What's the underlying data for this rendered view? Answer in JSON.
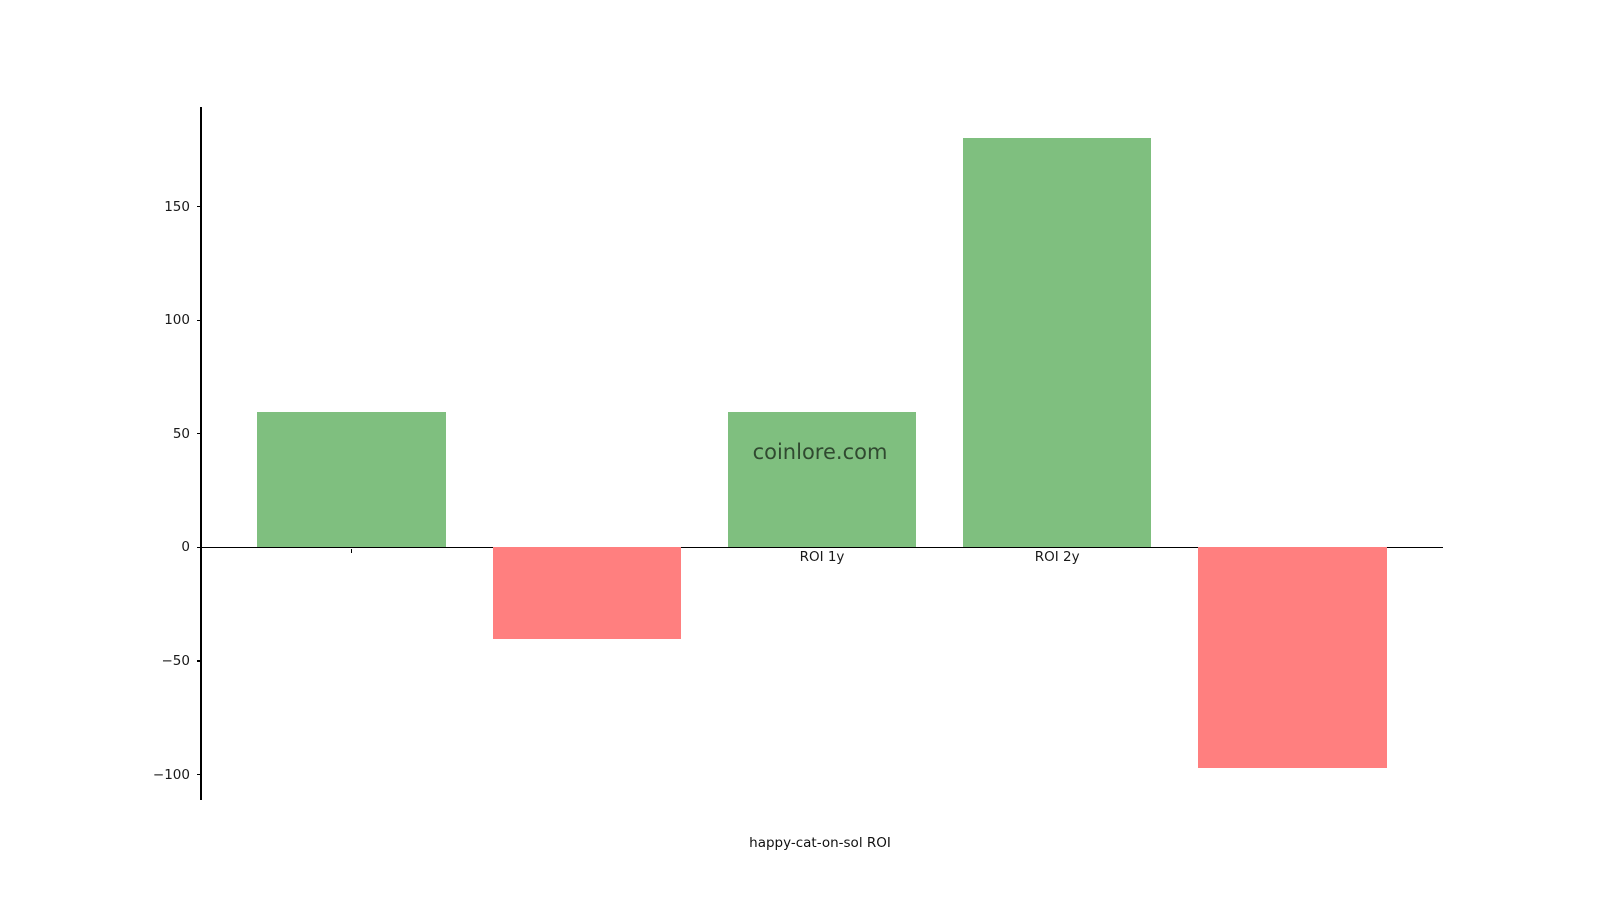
{
  "page": {
    "background": "#ffffff"
  },
  "watermark": {
    "text": "coinlore.com"
  },
  "chart_data": {
    "type": "bar",
    "title": "happy-cat-on-sol ROI",
    "xlabel": "",
    "ylabel": "",
    "categories": [
      "",
      "",
      "ROI 1y",
      "ROI 2y",
      ""
    ],
    "values": [
      59.8,
      -40.4,
      59.8,
      180.1,
      -97.2
    ],
    "bar_colors": [
      "#7fbf7f",
      "#ff7f7f",
      "#7fbf7f",
      "#7fbf7f",
      "#ff7f7f"
    ],
    "positive_color": "#7fbf7f",
    "negative_color": "#ff7f7f",
    "bar_width": 0.8,
    "xlim": [
      -0.64,
      4.64
    ],
    "ylim": [
      -111.1,
      193.8
    ],
    "y_ticks": [
      150,
      100,
      50,
      0,
      -50,
      -100
    ],
    "y_tick_labels": [
      "150",
      "100",
      "50",
      "0",
      "−50",
      "−100"
    ],
    "x_tick_mark_indices": [
      0
    ],
    "grid": false,
    "legend": false,
    "axis_color": "#000000",
    "tick_label_color": "#1a1a1a",
    "watermark": "coinlore.com"
  }
}
